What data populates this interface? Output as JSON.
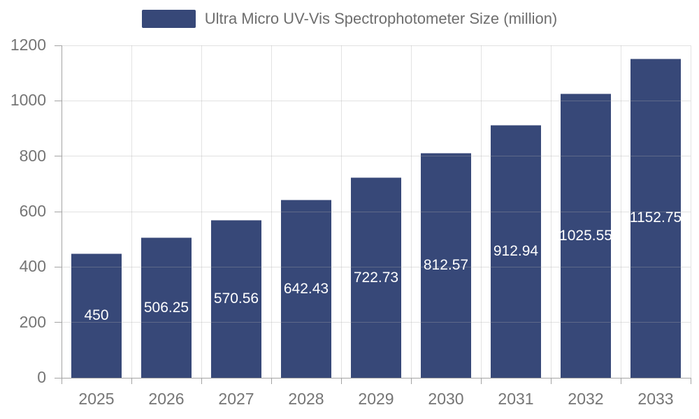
{
  "legend": {
    "label": "Ultra Micro UV-Vis Spectrophotometer Size (million)"
  },
  "colors": {
    "bar": "#374878",
    "bar_label": "#ffffff",
    "legend_text": "#6e6e6e",
    "tick_text": "#757575",
    "axis_line": "#a3a3a3",
    "gridline": "#e3e3e3",
    "background": "#ffffff"
  },
  "chart_data": {
    "type": "bar",
    "title": "Ultra Micro UV-Vis Spectrophotometer Size (million)",
    "categories": [
      "2025",
      "2026",
      "2027",
      "2028",
      "2029",
      "2030",
      "2031",
      "2032",
      "2033"
    ],
    "series": [
      {
        "name": "Ultra Micro UV-Vis Spectrophotometer Size (million)",
        "values": [
          450,
          506.25,
          570.56,
          642.43,
          722.73,
          812.57,
          912.94,
          1025.55,
          1152.75
        ]
      }
    ],
    "value_labels": [
      "450",
      "506.25",
      "570.56",
      "642.43",
      "722.73",
      "812.57",
      "912.94",
      "1025.55",
      "1152.75"
    ],
    "xlabel": "",
    "ylabel": "",
    "ylim": [
      0,
      1200
    ],
    "yticks": [
      0,
      200,
      400,
      600,
      800,
      1000,
      1200
    ],
    "grid": true,
    "gridlines_over_bars": true,
    "legend_position": "top-center"
  }
}
